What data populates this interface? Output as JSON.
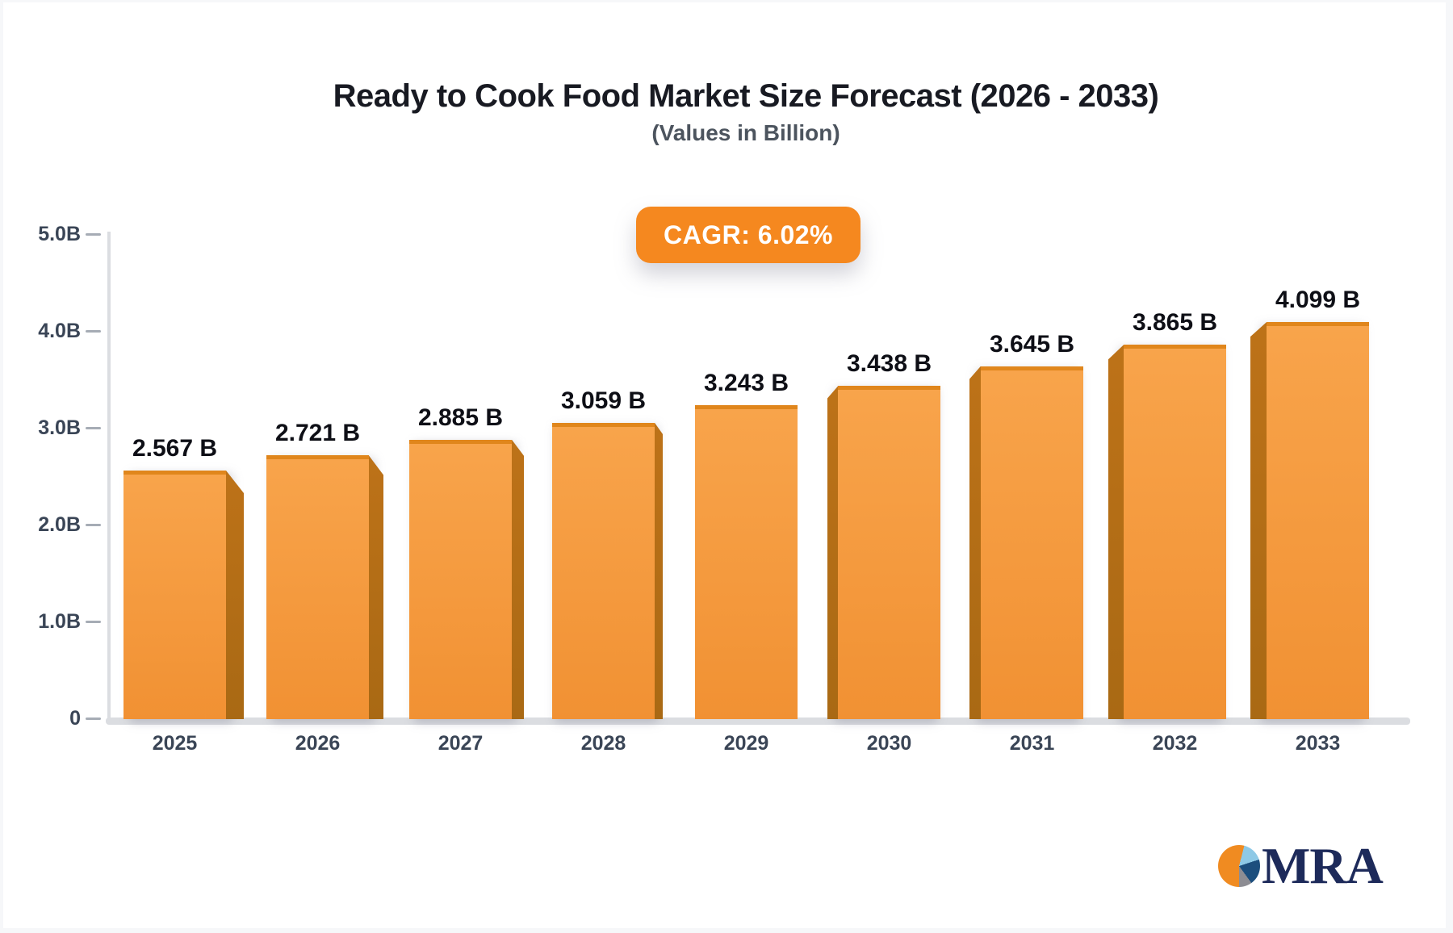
{
  "header": {
    "title": "Ready to Cook Food Market Size Forecast (2026 - 2033)",
    "subtitle": "(Values in Billion)"
  },
  "cagr_badge": {
    "label": "CAGR: 6.02%",
    "background": "#f5881f",
    "text_color": "#ffffff"
  },
  "chart_data": {
    "type": "bar",
    "title": "Ready to Cook Food Market Size Forecast (2026 - 2033)",
    "subtitle": "(Values in Billion)",
    "categories": [
      "2025",
      "2026",
      "2027",
      "2028",
      "2029",
      "2030",
      "2031",
      "2032",
      "2033"
    ],
    "values": [
      2.567,
      2.721,
      2.885,
      3.059,
      3.243,
      3.438,
      3.645,
      3.865,
      4.099
    ],
    "value_labels": [
      "2.567 B",
      "2.721 B",
      "2.885 B",
      "3.059 B",
      "3.243 B",
      "3.438 B",
      "3.645 B",
      "3.865 B",
      "4.099 B"
    ],
    "unit": "Billion",
    "cagr": "6.02%",
    "xlabel": "",
    "ylabel": "",
    "ylim": [
      0,
      5
    ],
    "ytick_labels": [
      "5.0B",
      "4.0B",
      "3.0B",
      "2.0B",
      "1.0B",
      "0"
    ],
    "grid": false,
    "legend": "none",
    "bar_color_top": "#f8a44b",
    "bar_color_bottom": "#f19133",
    "bar_side_color": "#bd7218",
    "bar_edge_color": "#e0861c",
    "axis_color": "#dbdde1",
    "tick_color": "#a6acb5",
    "label_color": "#3a4556"
  },
  "logo": {
    "text": "MRA",
    "pie_orange": "#f08b21",
    "pie_lightblue": "#8ec9e6",
    "pie_navy": "#1c4e7d",
    "pie_gray": "#8d8d93"
  }
}
